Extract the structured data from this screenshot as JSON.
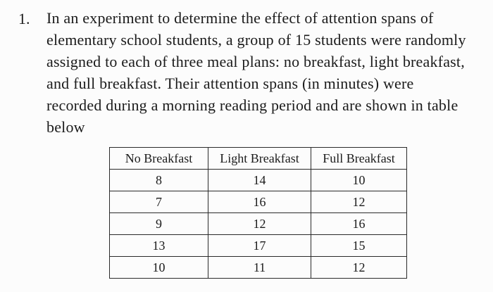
{
  "document": {
    "problem_number": "1.",
    "problem_text": "In an experiment to determine the effect of attention spans of elementary school students, a group of 15 students were randomly assigned to each of three meal plans: no breakfast, light breakfast, and full breakfast. Their attention spans (in minutes) were recorded during a morning reading period and are shown in table below"
  },
  "table": {
    "headers": [
      "No Breakfast",
      "Light Breakfast",
      "Full Breakfast"
    ],
    "rows": [
      [
        "8",
        "14",
        "10"
      ],
      [
        "7",
        "16",
        "12"
      ],
      [
        "9",
        "12",
        "16"
      ],
      [
        "13",
        "17",
        "15"
      ],
      [
        "10",
        "11",
        "12"
      ]
    ]
  },
  "colors": {
    "background": "#fcfcfc",
    "text": "#1b1b1b",
    "table_border": "#2a2a2a"
  }
}
